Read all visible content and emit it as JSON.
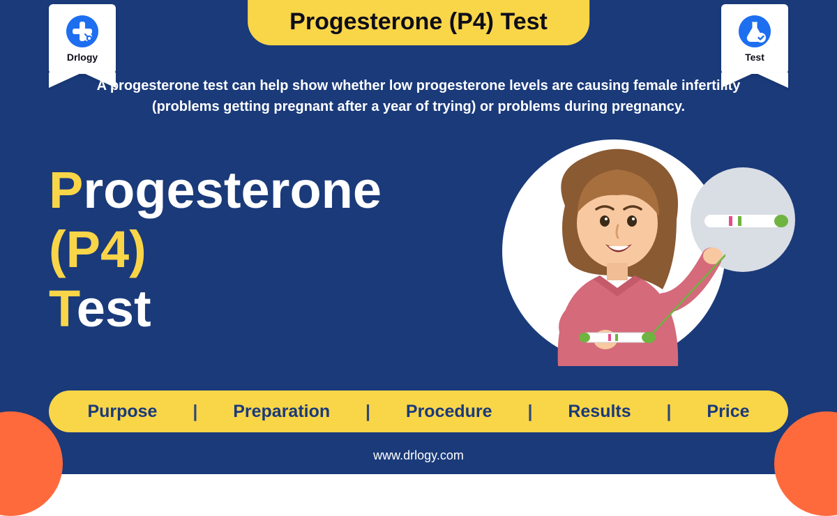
{
  "colors": {
    "background": "#1a3a7a",
    "accent_yellow": "#f9d548",
    "accent_orange": "#ff6a3d",
    "icon_blue": "#1e6ef0",
    "white": "#ffffff",
    "text_dark": "#0d0d1a",
    "callout_grey": "#d9dde4",
    "test_green": "#6fb341",
    "test_pink": "#e64c8a"
  },
  "banner": {
    "text": "Progesterone (P4) Test",
    "fontsize": 34
  },
  "ribbon_left": {
    "label": "Drlogy",
    "icon": "medical-cross"
  },
  "ribbon_right": {
    "label": "Test",
    "icon": "flask-check"
  },
  "description": "A progesterone test can help show whether low progesterone levels are causing female infertility (problems getting pregnant after a year of trying) or problems during pregnancy.",
  "big_title": {
    "lines": [
      {
        "accent": "P",
        "rest": "rogesterone"
      },
      {
        "accent": "(P4)",
        "rest": ""
      },
      {
        "accent": "T",
        "rest": "est"
      }
    ],
    "fontsize": 74
  },
  "illustration": {
    "type": "woman-holding-pregnancy-test",
    "skin": "#f8c9a1",
    "hair": "#8a5a32",
    "shirt": "#d46a7a",
    "mouth": "#8a2e2e"
  },
  "footer": {
    "items": [
      "Purpose",
      "Preparation",
      "Procedure",
      "Results",
      "Price"
    ],
    "separator": "|",
    "fontsize": 25
  },
  "site_url": "www.drlogy.com"
}
